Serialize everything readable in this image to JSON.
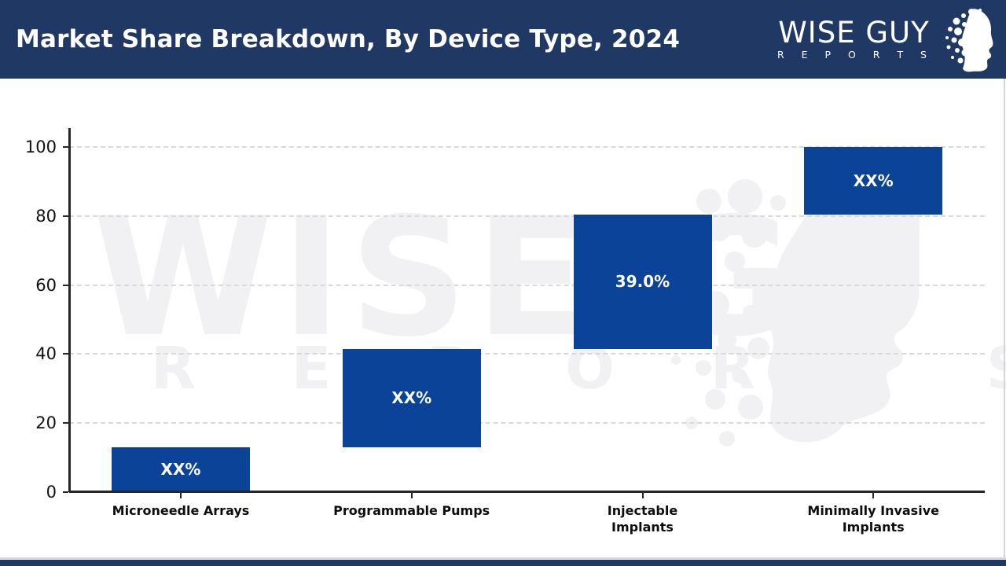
{
  "header": {
    "title": "Market Share Breakdown, By Device Type, 2024",
    "logo": {
      "line1": "WISE GUY",
      "line2": "R E P O R T S"
    }
  },
  "watermark": {
    "line1": "WISE GU",
    "line2": "R E P O R T S"
  },
  "chart_data": {
    "type": "bar",
    "subtype": "waterfall",
    "title": "Market Share Breakdown, By Device Type, 2024",
    "categories": [
      "Microneedle Arrays",
      "Programmable Pumps",
      "Injectable\nImplants",
      "Minimally Invasive\nImplants"
    ],
    "values": [
      13.0,
      28.5,
      39.0,
      19.5
    ],
    "segments": [
      {
        "start": 0,
        "end": 13.0
      },
      {
        "start": 13.0,
        "end": 41.5
      },
      {
        "start": 41.5,
        "end": 80.5
      },
      {
        "start": 80.5,
        "end": 100.0
      }
    ],
    "bar_labels": [
      "XX%",
      "XX%",
      "39.0%",
      "XX%"
    ],
    "unit": "%",
    "xlabel": "",
    "ylabel": "",
    "ylim": [
      0,
      100
    ],
    "yticks": [
      0,
      20,
      40,
      60,
      80,
      100
    ],
    "ytick_labels": [
      "0",
      "20",
      "40",
      "60",
      "80",
      "100"
    ],
    "grid": "horizontal-dashed",
    "legend": "none",
    "colors": {
      "bar": "#0a4397",
      "grid": "#d9d9d9",
      "axis": "#262626",
      "bar_label_text": "#ffffff",
      "header_bg": "#203864",
      "footer_bg": "#203864",
      "watermark": "#f1f1f4"
    }
  }
}
